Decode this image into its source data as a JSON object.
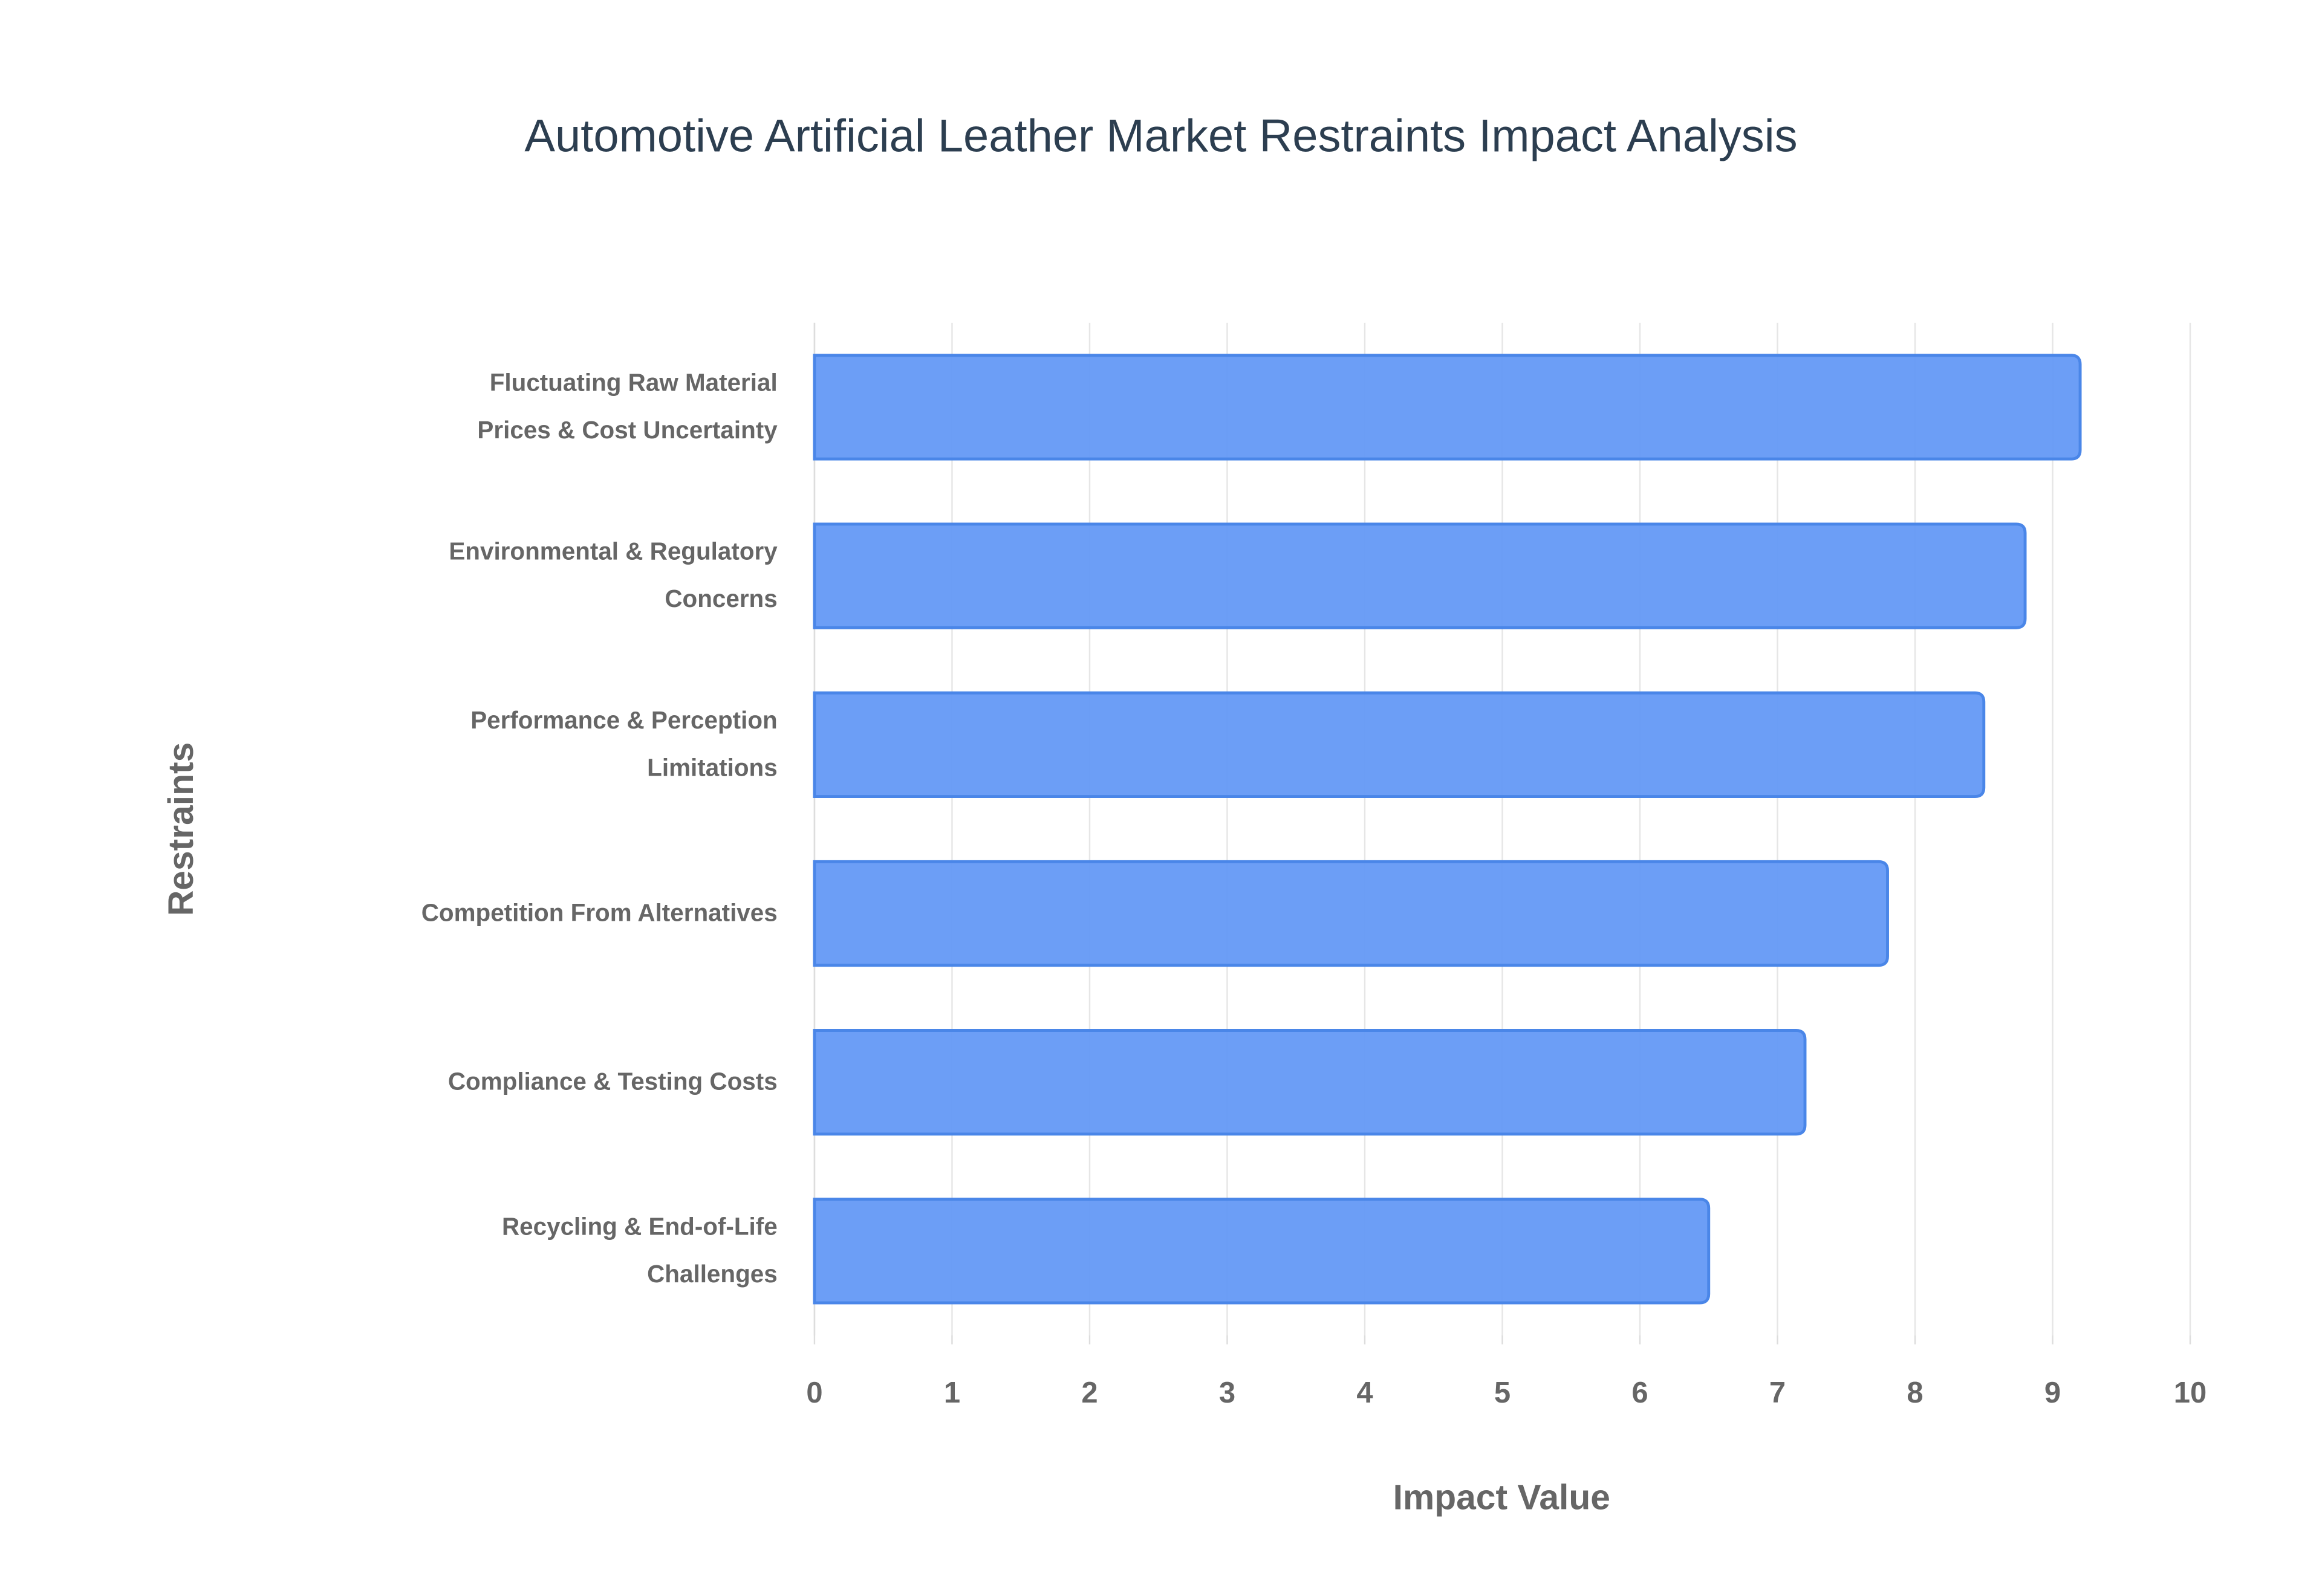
{
  "chart_data": {
    "type": "bar",
    "orientation": "horizontal",
    "title": "Automotive Artificial Leather Market Restraints Impact Analysis",
    "x_label": "Impact Value",
    "y_label": "Restraints",
    "categories": [
      "Fluctuating Raw Material\nPrices & Cost Uncertainty",
      "Environmental & Regulatory\nConcerns",
      "Performance & Perception\nLimitations",
      "Competition From Alternatives",
      "Compliance & Testing Costs",
      "Recycling & End-of-Life\nChallenges"
    ],
    "values": [
      9.2,
      8.8,
      8.5,
      7.8,
      7.2,
      6.5
    ],
    "color": "#6499f5",
    "xlim": [
      0,
      10
    ],
    "xticks": [
      0,
      1,
      2,
      3,
      4,
      5,
      6,
      7,
      8,
      9,
      10
    ],
    "grid": true
  }
}
